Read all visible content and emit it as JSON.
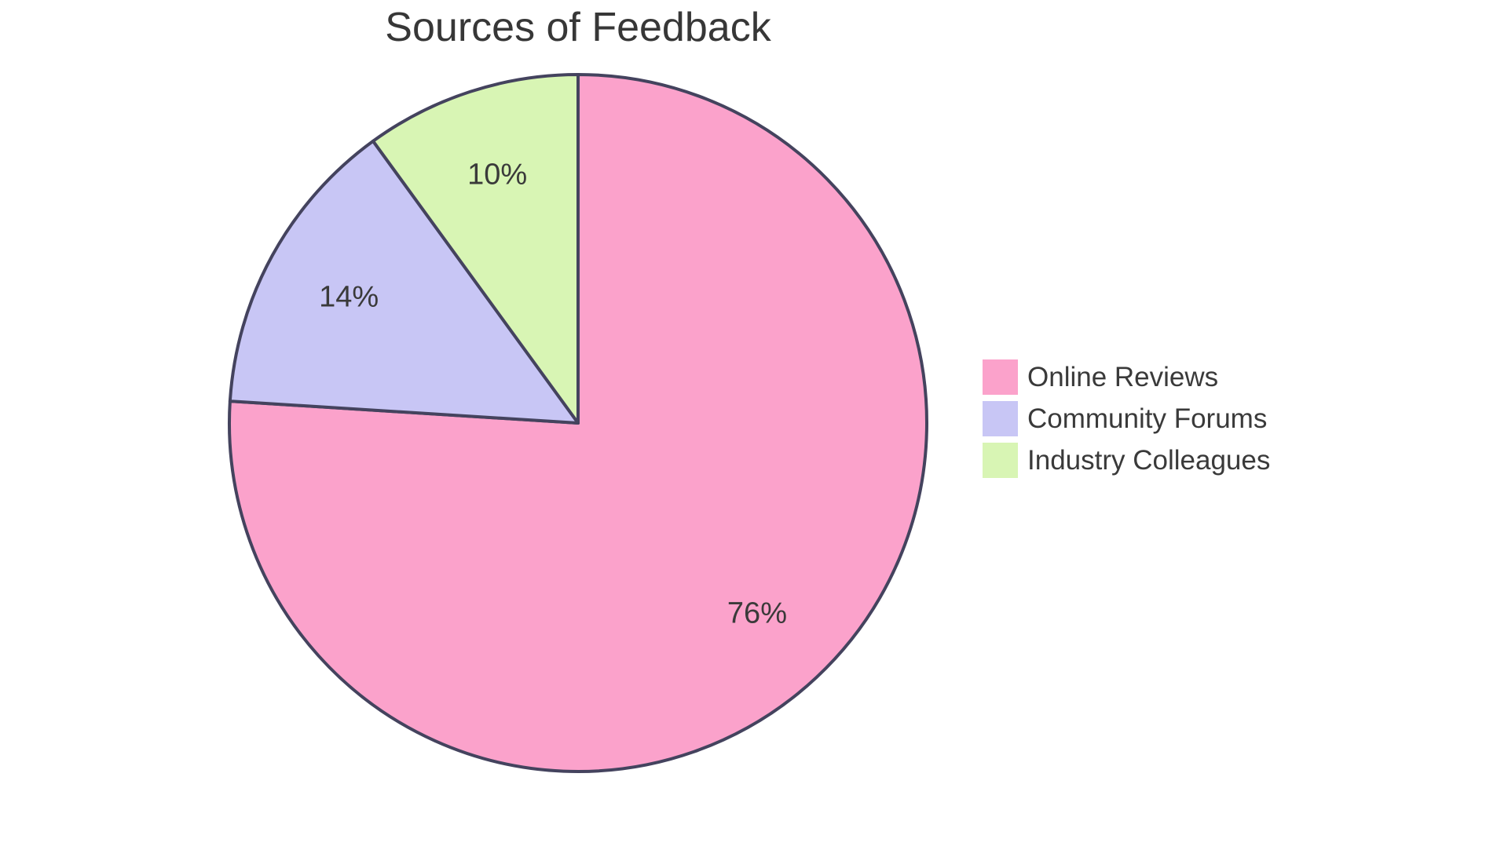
{
  "title": "Sources of Feedback",
  "chart_data": {
    "type": "pie",
    "title": "Sources of Feedback",
    "labels": [
      "Online Reviews",
      "Community Forums",
      "Industry Colleagues"
    ],
    "values": [
      76,
      14,
      10
    ],
    "value_labels": [
      "76%",
      "14%",
      "10%"
    ],
    "colors": [
      "#FBA2CB",
      "#C8C6F5",
      "#D8F5B4"
    ],
    "stroke_color": "#44435E",
    "text_color": "#3A3A3A",
    "legend_position": "right",
    "start_angle_deg": 0,
    "direction": "clockwise",
    "percent_label_distance": 0.75
  }
}
